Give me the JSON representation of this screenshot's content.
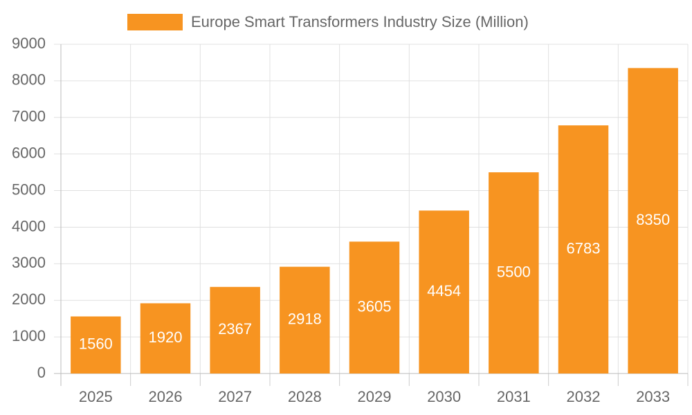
{
  "chart_data": {
    "type": "bar",
    "categories": [
      "2025",
      "2026",
      "2027",
      "2028",
      "2029",
      "2030",
      "2031",
      "2032",
      "2033"
    ],
    "series": [
      {
        "name": "Europe Smart Transformers Industry Size (Million)",
        "color": "#f79421",
        "values": [
          1560,
          1920,
          2367,
          2918,
          3605,
          4454,
          5500,
          6783,
          8350
        ]
      }
    ],
    "ylim": [
      0,
      9000
    ],
    "yticks": [
      0,
      1000,
      2000,
      3000,
      4000,
      5000,
      6000,
      7000,
      8000,
      9000
    ],
    "grid": true,
    "legend": "top",
    "data_labels": true
  }
}
